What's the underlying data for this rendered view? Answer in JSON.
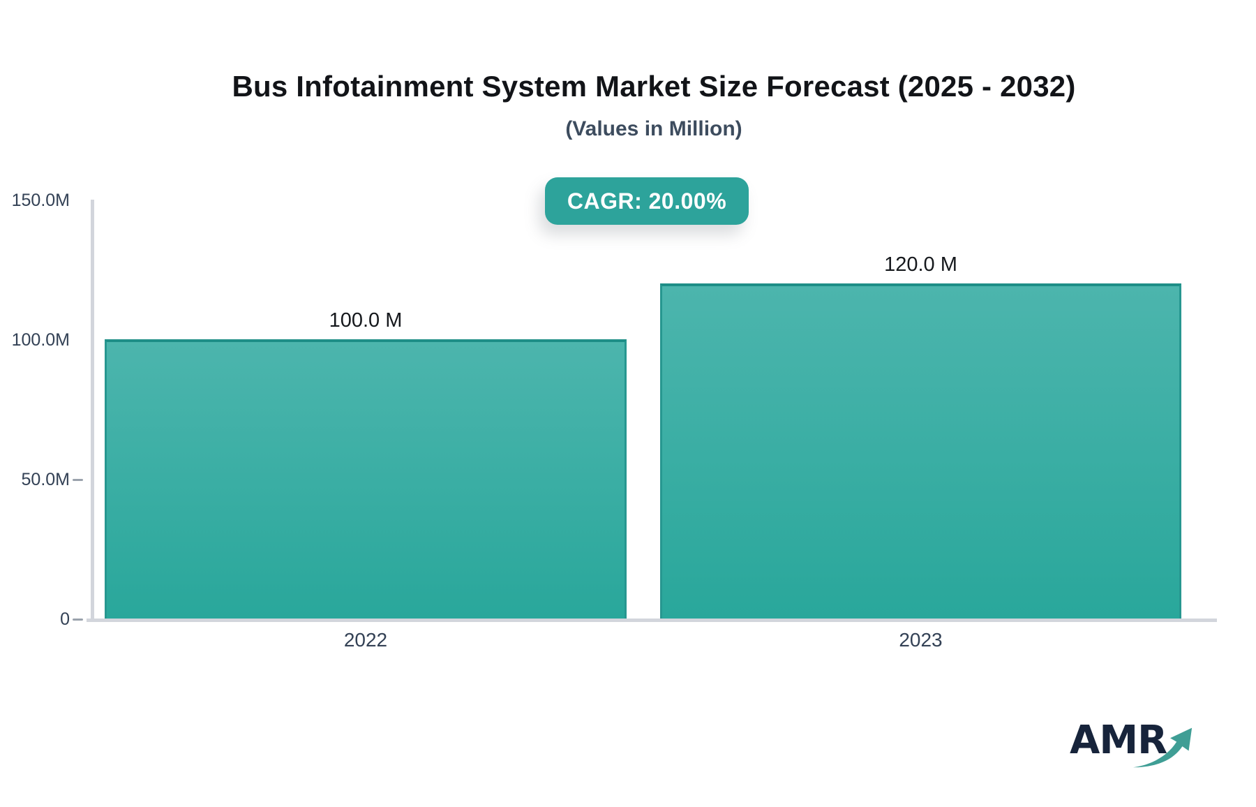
{
  "chart": {
    "title": "Bus Infotainment System Market Size Forecast (2025 - 2032)",
    "subtitle": "(Values in Million)",
    "cagr_label": "CAGR: 20.00%"
  },
  "chart_data": {
    "type": "bar",
    "title": "Bus Infotainment System Market Size Forecast (2025 - 2032)",
    "subtitle": "(Values in Million)",
    "annotation": "CAGR: 20.00%",
    "categories": [
      "2022",
      "2023"
    ],
    "values": [
      100.0,
      120.0
    ],
    "value_labels": [
      "100.0 M",
      "120.0 M"
    ],
    "yticks": [
      "150.0M",
      "100.0M",
      "50.0M",
      "0"
    ],
    "ylim": [
      0,
      150
    ],
    "grid": false,
    "legend": false,
    "bar_gradient_top": "#4cb5ad",
    "bar_gradient_bottom": "#29a79b",
    "bar_border_color": "#1e8e87"
  },
  "colors": {
    "badge_bg": "#2da39b",
    "axis_line": "#d2d5dc",
    "text_dark": "#121418",
    "text_slate": "#334155",
    "logo_navy": "#17243b",
    "logo_teal": "#3f9e95"
  },
  "logo": {
    "text": "AMR"
  }
}
